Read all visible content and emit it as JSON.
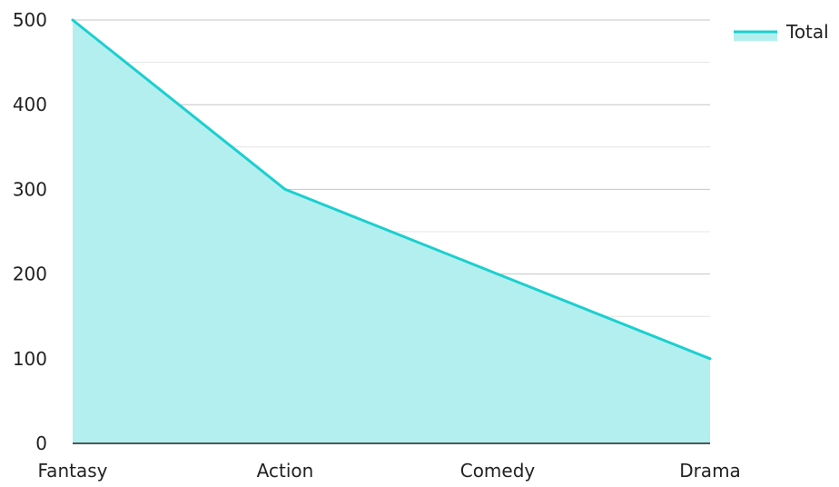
{
  "chart_data": {
    "type": "area",
    "categories": [
      "Fantasy",
      "Action",
      "Comedy",
      "Drama"
    ],
    "series": [
      {
        "name": "Total",
        "values": [
          500,
          300,
          200,
          100
        ]
      }
    ],
    "ylim": [
      0,
      500
    ],
    "yticks": [
      0,
      100,
      200,
      300,
      400,
      500
    ],
    "grid": true,
    "legend_position": "top-right",
    "colors": {
      "line": "#1ccfcf",
      "fill": "#b3efef",
      "grid_major": "#c4c4c4",
      "grid_minor": "#e4e4e4",
      "axis": "#222222"
    }
  }
}
